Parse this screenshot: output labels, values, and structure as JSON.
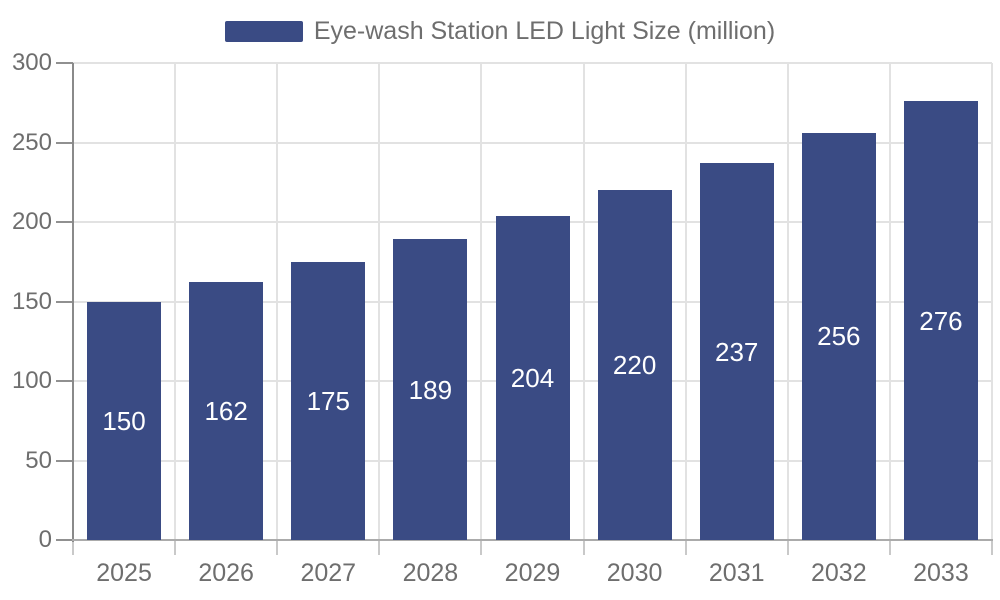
{
  "chart_data": {
    "type": "bar",
    "title": "Eye-wash Station LED Light Size (million)",
    "legend": {
      "label": "Eye-wash Station LED Light Size (million)",
      "position": "top"
    },
    "categories": [
      "2025",
      "2026",
      "2027",
      "2028",
      "2029",
      "2030",
      "2031",
      "2032",
      "2033"
    ],
    "values": [
      150,
      162,
      175,
      189,
      204,
      220,
      237,
      256,
      276
    ],
    "series": [
      {
        "name": "Eye-wash Station LED Light Size (million)",
        "values": [
          150,
          162,
          175,
          189,
          204,
          220,
          237,
          256,
          276
        ]
      }
    ],
    "xlabel": "",
    "ylabel": "",
    "ylim": [
      0,
      300
    ],
    "yticks": [
      0,
      50,
      100,
      150,
      200,
      250,
      300
    ],
    "grid": true,
    "value_labels_inside_bars": true,
    "colors": {
      "bar": "#3A4B84",
      "gridline": "#e2e2e2",
      "y_axis_line": "#8a8a8a",
      "x_axis_line": "#ababab",
      "y_tick": "#909090",
      "x_tick": "#c9c9c9",
      "axis_label_text": "#6e6e6e",
      "legend_text": "#6e6e6e",
      "bar_value_text": "#ffffff",
      "background": "#ffffff"
    }
  }
}
